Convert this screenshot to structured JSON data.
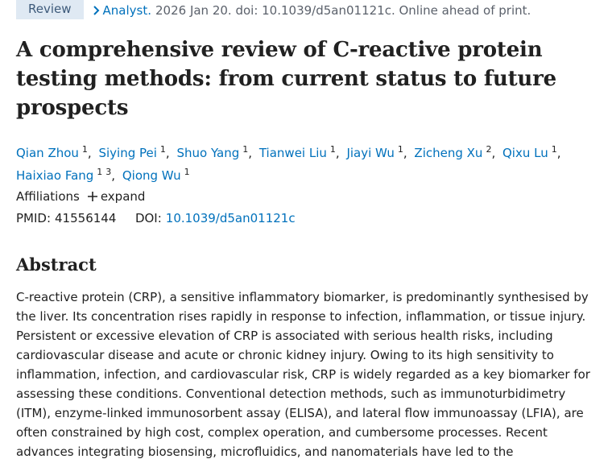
{
  "header": {
    "badge": "Review",
    "journal": "Analyst.",
    "citation": "2026 Jan 20. doi: 10.1039/d5an01121c. Online ahead of print."
  },
  "title": "A comprehensive review of C-reactive protein testing methods: from current status to future prospects",
  "author_separator": ",",
  "authors": [
    {
      "name": "Qian Zhou",
      "affiliations": [
        1
      ]
    },
    {
      "name": "Siying Pei",
      "affiliations": [
        1
      ]
    },
    {
      "name": "Shuo Yang",
      "affiliations": [
        1
      ]
    },
    {
      "name": "Tianwei Liu",
      "affiliations": [
        1
      ]
    },
    {
      "name": "Jiayi Wu",
      "affiliations": [
        1
      ]
    },
    {
      "name": "Zicheng Xu",
      "affiliations": [
        2
      ]
    },
    {
      "name": "Qixu Lu",
      "affiliations": [
        1
      ]
    },
    {
      "name": "Haixiao Fang",
      "affiliations": [
        1,
        3
      ]
    },
    {
      "name": "Qiong Wu",
      "affiliations": [
        1
      ]
    }
  ],
  "affiliations": {
    "label": "Affiliations",
    "toggle": "expand"
  },
  "identifiers": {
    "pmid_label": "PMID:",
    "pmid": "41556144",
    "doi_label": "DOI:",
    "doi": "10.1039/d5an01121c"
  },
  "abstract": {
    "heading": "Abstract",
    "text": "C-reactive protein (CRP), a sensitive inflammatory biomarker, is predominantly synthesised by the liver. Its concentration rises rapidly in response to infection, inflammation, or tissue injury. Persistent or excessive elevation of CRP is associated with serious health risks, including cardiovascular disease and acute or chronic kidney injury. Owing to its high sensitivity to inflammation, infection, and cardiovascular risk, CRP is widely regarded as a key biomarker for assessing these conditions. Conventional detection methods, such as immunoturbidimetry (ITM), enzyme-linked immunosorbent assay (ELISA), and lateral flow immunoassay (LFIA), are often constrained by high cost, complex operation, and cumbersome processes. Recent advances integrating biosensing, microfluidics, and nanomaterials have led to the development of multi-dimensional, synergistic detection platforms,"
  }
}
